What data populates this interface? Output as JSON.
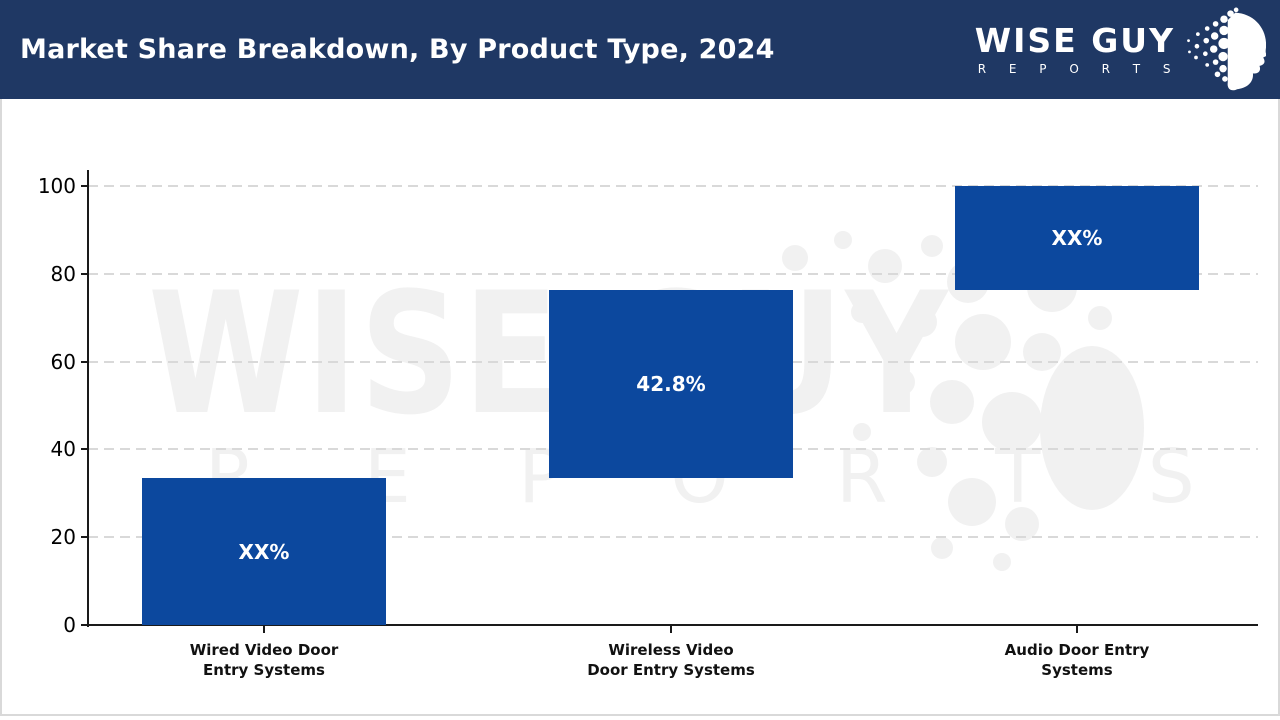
{
  "header": {
    "title": "Market Share Breakdown, By Product Type, 2024",
    "logo": {
      "wordmark": "WISE GUY",
      "subtext": "R E P O R T S"
    }
  },
  "watermark": {
    "wordmark": "WISE GUY",
    "subtext": "R E P O R T S"
  },
  "colors": {
    "header_bg": "#1f3864",
    "bar": "#0c489e",
    "bar_label": "#ffffff",
    "grid": "#d9d9d9",
    "axis": "#1a1a1a",
    "tick_label": "#000000",
    "watermark": "#f1f1f1",
    "frame_border": "#d9d9d9"
  },
  "chart_data": {
    "type": "bar",
    "subtype": "waterfall",
    "title": "Market Share Breakdown, By Product Type, 2024",
    "xlabel": "",
    "ylabel": "",
    "categories": [
      [
        "Wired Video Door",
        "Entry Systems"
      ],
      [
        "Wireless Video",
        "Door Entry Systems"
      ],
      [
        "Audio Door Entry",
        "Systems"
      ]
    ],
    "bars": [
      {
        "label": "XX%",
        "start": 0,
        "end": 33.4
      },
      {
        "label": "42.8%",
        "start": 33.4,
        "end": 76.2
      },
      {
        "label": "XX%",
        "start": 76.2,
        "end": 100
      }
    ],
    "yticks": [
      0,
      20,
      40,
      60,
      80,
      100
    ],
    "ylim": [
      0,
      103.5
    ],
    "grid": "horizontal-dashed",
    "legend": "none"
  }
}
